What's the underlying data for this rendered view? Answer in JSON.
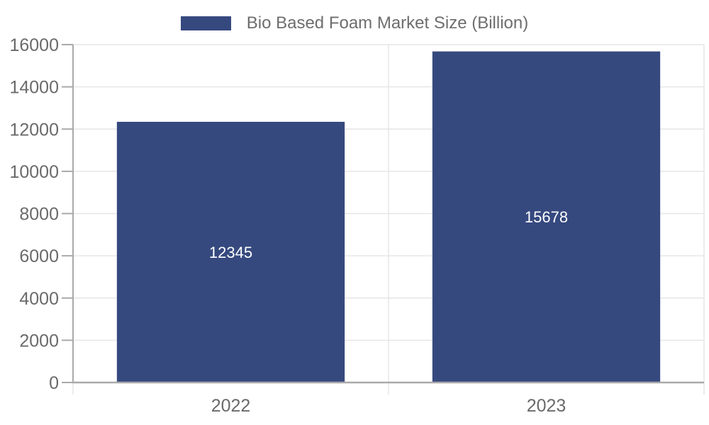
{
  "chart_data": {
    "type": "bar",
    "series_name": "Bio Based Foam Market Size (Billion)",
    "categories": [
      "2022",
      "2023"
    ],
    "values": [
      12345,
      15678
    ],
    "bar_labels": [
      "12345",
      "15678"
    ],
    "yticks": [
      0,
      2000,
      4000,
      6000,
      8000,
      10000,
      12000,
      14000,
      16000
    ],
    "ylim": [
      0,
      16000
    ],
    "xlabel": "",
    "ylabel": "",
    "title": "",
    "legend_position": "top-center",
    "grid": true,
    "colors": {
      "bar": "#36497f",
      "bar_value_text": "#ffffff",
      "grid_line": "#e6e6e6",
      "axis_line": "#a9a9a9",
      "tick_text": "#6a6a6a",
      "legend_text": "#6e6e6e",
      "background": "#ffffff"
    }
  }
}
